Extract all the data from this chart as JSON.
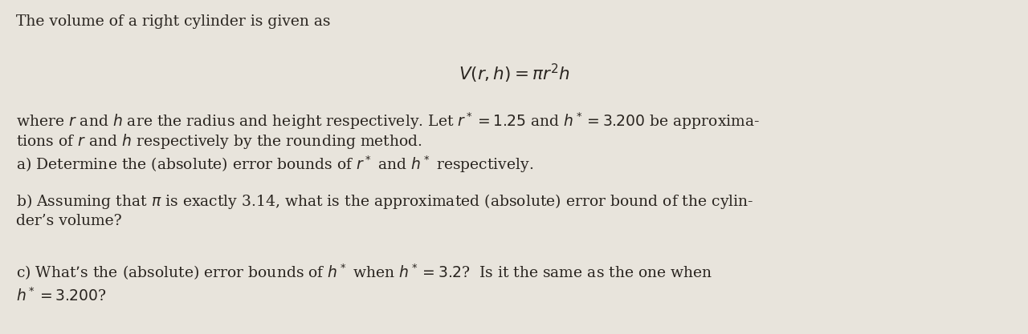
{
  "background_color": "#e8e4dc",
  "text_color": "#2a2520",
  "figsize": [
    12.8,
    4.17
  ],
  "dpi": 100,
  "line1": "The volume of a right cylinder is given as",
  "formula": "$V(r, h) = \\pi r^2 h$",
  "para1_line1": "where $r$ and $h$ are the radius and height respectively. Let $r^* = 1.25$ and $h^* = 3.200$ be approxima-",
  "para1_line2": "tions of $r$ and $h$ respectively by the rounding method.",
  "para1_line3": "a) Determine the (absolute) error bounds of $r^*$ and $h^*$ respectively.",
  "para2_line1": "b) Assuming that $\\pi$ is exactly 3.14, what is the approximated (absolute) error bound of the cylin-",
  "para2_line2": "der’s volume?",
  "para3_line1": "c) What’s the (absolute) error bounds of $h^*$ when $h^* = 3.2$?  Is it the same as the one when",
  "para3_line2": "$h^* = 3.200$?",
  "font_size_main": 13.5,
  "font_size_formula": 15.5
}
